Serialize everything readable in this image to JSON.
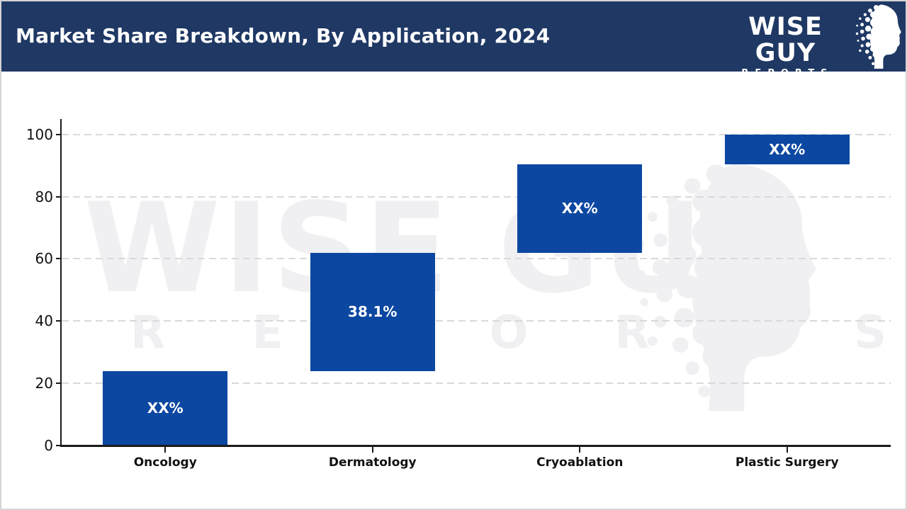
{
  "header": {
    "title": "Market Share Breakdown, By Application, 2024",
    "bg_color": "#1f3864",
    "logo": {
      "line1": "WISE GUY",
      "line2": "REPORTS"
    }
  },
  "watermark": {
    "line1": "WISE GUY",
    "line2": "REPORTS"
  },
  "chart_data": {
    "type": "bar",
    "subtype": "waterfall-market-share",
    "title": "Market Share Breakdown, By Application, 2024",
    "categories": [
      "Oncology",
      "Dermatology",
      "Cryoablation",
      "Plastic Surgery"
    ],
    "segments": [
      {
        "category": "Oncology",
        "start": 0,
        "end": 23.9,
        "label": "XX%"
      },
      {
        "category": "Dermatology",
        "start": 23.9,
        "end": 62.0,
        "label": "38.1%"
      },
      {
        "category": "Cryoablation",
        "start": 62.0,
        "end": 90.5,
        "label": "XX%"
      },
      {
        "category": "Plastic Surgery",
        "start": 90.5,
        "end": 100,
        "label": "XX%"
      }
    ],
    "xlabel": "",
    "ylabel": "",
    "ylim": [
      0,
      100
    ],
    "yticks": [
      0,
      20,
      40,
      60,
      80,
      100
    ],
    "grid": "horizontal-dashed",
    "legend": "none",
    "bar_color": "#0c47a1",
    "bar_label_color": "#ffffff",
    "axis_color": "#1a1a1a",
    "grid_color": "#d9d9d9"
  }
}
